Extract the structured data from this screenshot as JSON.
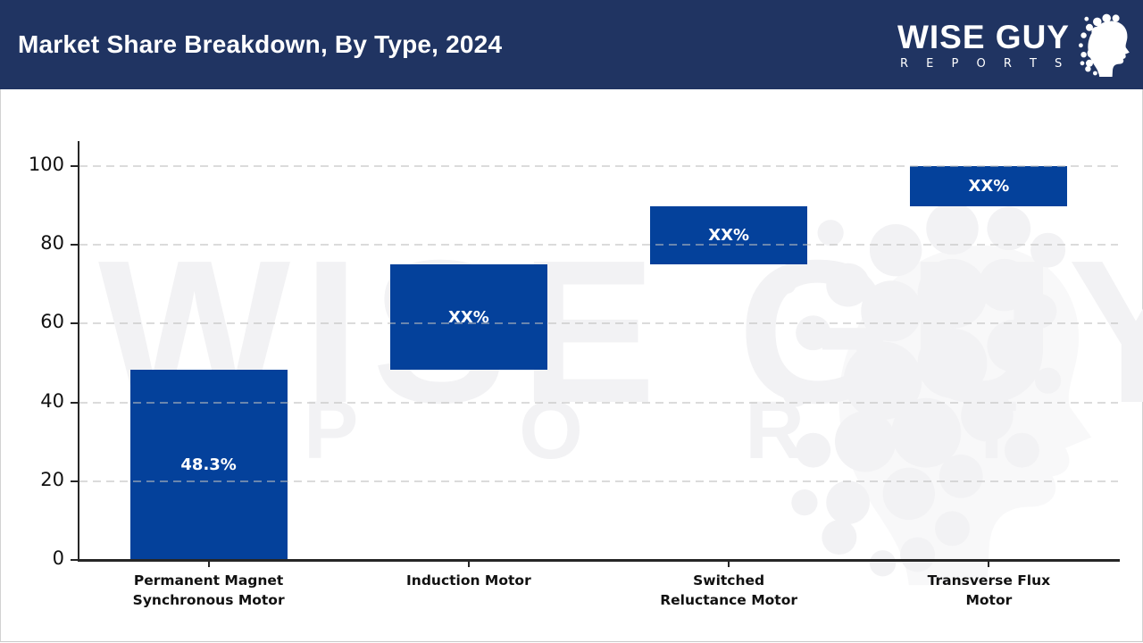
{
  "header": {
    "title": "Market Share Breakdown, By Type, 2024",
    "bg_color": "#203462",
    "logo": {
      "line1": "WISE GUY",
      "line2": "R E P O R T S"
    }
  },
  "watermark": {
    "line1": "WISE GUY",
    "line2": "P O R T S"
  },
  "chart_data": {
    "type": "bar",
    "subtype": "waterfall",
    "title": "Market Share Breakdown, By Type, 2024",
    "unit": "percent",
    "categories": [
      "Permanent Magnet\nSynchronous Motor",
      "Induction Motor",
      "Switched\nReluctance Motor",
      "Transverse Flux\nMotor"
    ],
    "segments": [
      {
        "category": "Permanent Magnet Synchronous Motor",
        "start": 0,
        "end": 48.3,
        "label": "48.3%"
      },
      {
        "category": "Induction Motor",
        "start": 48.3,
        "end": 75,
        "label": "XX%"
      },
      {
        "category": "Switched Reluctance Motor",
        "start": 75,
        "end": 89.8,
        "label": "XX%"
      },
      {
        "category": "Transverse Flux Motor",
        "start": 89.8,
        "end": 100,
        "label": "XX%"
      }
    ],
    "y_ticks": [
      0,
      20,
      40,
      60,
      80,
      100
    ],
    "ylim": [
      0,
      104
    ],
    "xlabel": "",
    "ylabel": "",
    "grid": "horizontal-dashed",
    "legend": "none",
    "bar_color": "#04419b",
    "bar_label_color": "#ffffff",
    "axis_color": "#262626"
  }
}
